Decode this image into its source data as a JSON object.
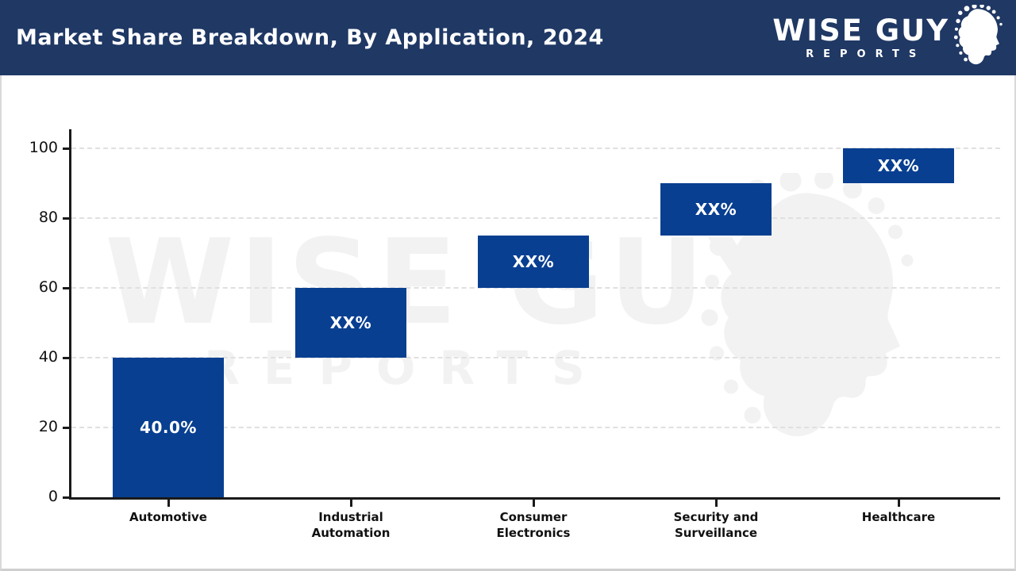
{
  "header": {
    "title": "Market Share Breakdown, By Application, 2024",
    "logo": {
      "line1": "WISE GUY",
      "line2": "REPORTS"
    }
  },
  "watermark": {
    "line1": "WISE GUY",
    "line2": "REPORTS"
  },
  "colors": {
    "header_bg": "#1f3864",
    "bar": "#083f91",
    "grid": "#e0e0e0",
    "axis": "#1a1a1a",
    "bar_label": "#ffffff",
    "watermark": "#f2f2f2"
  },
  "chart_data": {
    "type": "bar",
    "subtype": "waterfall",
    "title": "Market Share Breakdown, By Application, 2024",
    "categories": [
      "Automotive",
      "Industrial\nAutomation",
      "Consumer\nElectronics",
      "Security and\nSurveillance",
      "Healthcare"
    ],
    "starts": [
      0,
      40,
      60,
      75,
      90
    ],
    "ends": [
      40,
      60,
      75,
      90,
      100
    ],
    "values": [
      40,
      20,
      15,
      15,
      10
    ],
    "bar_labels": [
      "40.0%",
      "XX%",
      "XX%",
      "XX%",
      "XX%"
    ],
    "yticks": [
      0,
      20,
      40,
      60,
      80,
      100
    ],
    "ylim": [
      0,
      105
    ],
    "xlabel": "",
    "ylabel": "",
    "grid": "horizontal-dashed",
    "legend": "none"
  }
}
